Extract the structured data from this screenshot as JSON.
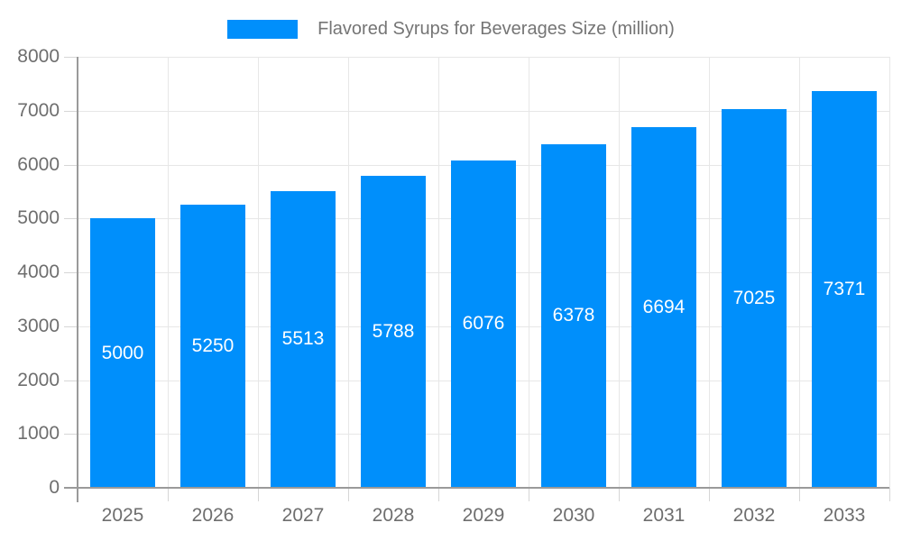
{
  "legend": {
    "label": "Flavored Syrups for Beverages Size (million)"
  },
  "chart_data": {
    "type": "bar",
    "title": "Flavored Syrups for Beverages Size (million)",
    "categories": [
      "2025",
      "2026",
      "2027",
      "2028",
      "2029",
      "2030",
      "2031",
      "2032",
      "2033"
    ],
    "values": [
      5000,
      5250,
      5513,
      5788,
      6076,
      6378,
      6694,
      7025,
      7371
    ],
    "xlabel": "",
    "ylabel": "",
    "ylim": [
      0,
      8000
    ],
    "y_ticks": [
      0,
      1000,
      2000,
      3000,
      4000,
      5000,
      6000,
      7000,
      8000
    ],
    "grid": true,
    "legend_position": "top-center",
    "bar_label_position": "center-inside",
    "colors": {
      "bar": "#008ffb",
      "bar_label": "#ffffff",
      "axis": "#9a9a9a",
      "grid": "#e7e7e7",
      "tick": "#d6d6d6",
      "label": "#6e6e6e",
      "legend_text": "#757575",
      "background": "#ffffff"
    }
  }
}
